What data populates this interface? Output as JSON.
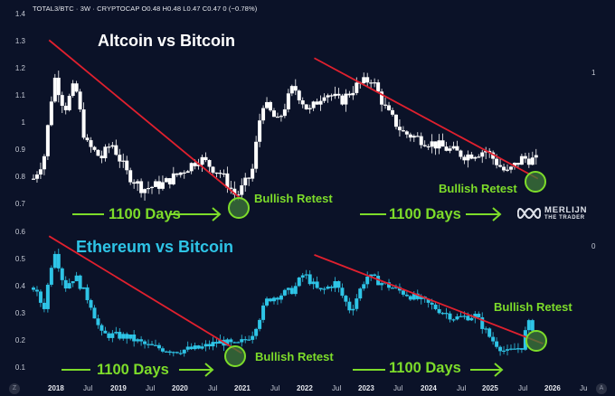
{
  "header": {
    "ohlc_line": "TOTAL3/BTC · 3W · CRYPTOCAP  O0.48  H0.48  L0.47  C0.47  0 (−0.78%)",
    "symbol": "TOTAL3/BTC",
    "interval": "3W",
    "exchange": "CRYPTOCAP",
    "open": "0.48",
    "high": "0.48",
    "low": "0.47",
    "close": "0.47",
    "change": "0 (−0.78%)"
  },
  "colors": {
    "background": "#0b1228",
    "altcoin_candle": "#ffffff",
    "eth_candle": "#2ec4e6",
    "trendline": "#e0202e",
    "annotation": "#7ddc2a",
    "retest_fill": "#3f7a3a"
  },
  "panels": {
    "top": {
      "title": "Altcoin vs Bitcoin",
      "right_axis_label": "1",
      "annotations": {
        "retest_1": "Bullish Retest",
        "retest_2": "Bullish Retest",
        "days_1": "1100 Days",
        "days_2": "1100 Days"
      }
    },
    "bottom": {
      "title": "Ethereum vs Bitcoin",
      "right_axis_label": "0",
      "annotations": {
        "retest_1": "Bullish Retest",
        "retest_2": "Bullish Retest",
        "days_1": "1100 Days",
        "days_2": "1100 Days"
      }
    }
  },
  "logo": {
    "line1": "MERLIJN",
    "line2": "THE TRADER"
  },
  "controls": {
    "zoom_button": "Z",
    "auto_button": "A"
  },
  "chart_data": [
    {
      "type": "candlestick",
      "title": "Altcoin vs Bitcoin",
      "symbol": "TOTAL3/BTC",
      "interval": "3W",
      "ylabel": "",
      "ylim": [
        0.68,
        1.42
      ],
      "yticks": [
        1.4,
        1.3,
        1.2,
        1.1,
        1,
        0.9,
        0.8,
        0.7
      ],
      "x_ticks": [
        "2018",
        "Jul",
        "2019",
        "Jul",
        "2020",
        "Jul",
        "2021",
        "Jul",
        "2022",
        "Jul",
        "2023",
        "Jul",
        "2024",
        "Jul",
        "2025",
        "Jul",
        "2026",
        "Ju"
      ],
      "approx_close_path": [
        {
          "t": "2017-09",
          "v": 0.78
        },
        {
          "t": "2017-11",
          "v": 0.86
        },
        {
          "t": "2018-01",
          "v": 1.18
        },
        {
          "t": "2018-03",
          "v": 1.05
        },
        {
          "t": "2018-05",
          "v": 1.15
        },
        {
          "t": "2018-07",
          "v": 0.92
        },
        {
          "t": "2018-10",
          "v": 0.86
        },
        {
          "t": "2018-12",
          "v": 0.92
        },
        {
          "t": "2019-03",
          "v": 0.8
        },
        {
          "t": "2019-06",
          "v": 0.74
        },
        {
          "t": "2019-10",
          "v": 0.76
        },
        {
          "t": "2020-01",
          "v": 0.8
        },
        {
          "t": "2020-05",
          "v": 0.86
        },
        {
          "t": "2020-09",
          "v": 0.8
        },
        {
          "t": "2020-12",
          "v": 0.71
        },
        {
          "t": "2021-03",
          "v": 0.8
        },
        {
          "t": "2021-05",
          "v": 1.08
        },
        {
          "t": "2021-08",
          "v": 1.0
        },
        {
          "t": "2021-11",
          "v": 1.14
        },
        {
          "t": "2022-02",
          "v": 1.04
        },
        {
          "t": "2022-05",
          "v": 1.12
        },
        {
          "t": "2022-08",
          "v": 1.08
        },
        {
          "t": "2022-11",
          "v": 1.14
        },
        {
          "t": "2023-02",
          "v": 1.17
        },
        {
          "t": "2023-05",
          "v": 1.04
        },
        {
          "t": "2023-08",
          "v": 0.96
        },
        {
          "t": "2023-12",
          "v": 0.93
        },
        {
          "t": "2024-04",
          "v": 0.9
        },
        {
          "t": "2024-08",
          "v": 0.87
        },
        {
          "t": "2024-12",
          "v": 0.89
        },
        {
          "t": "2025-04",
          "v": 0.8
        },
        {
          "t": "2025-07",
          "v": 0.86
        },
        {
          "t": "2025-10",
          "v": 0.85
        }
      ],
      "trendlines": [
        {
          "from": {
            "t": "2017-12",
            "v": 1.32
          },
          "to": {
            "t": "2021-01",
            "v": 0.7
          }
        },
        {
          "from": {
            "t": "2022-03",
            "v": 1.25
          },
          "to": {
            "t": "2025-10",
            "v": 0.78
          }
        }
      ],
      "annotations": [
        {
          "text": "Bullish Retest",
          "at": "2021-01",
          "v": 0.71
        },
        {
          "text": "Bullish Retest",
          "at": "2025-09",
          "v": 0.8
        },
        {
          "text": "1100 Days",
          "span": [
            "2018-01",
            "2021-01"
          ]
        },
        {
          "text": "1100 Days",
          "span": [
            "2022-05",
            "2025-05"
          ]
        }
      ]
    },
    {
      "type": "candlestick",
      "title": "Ethereum vs Bitcoin",
      "ylabel": "",
      "ylim": [
        0.06,
        0.64
      ],
      "yticks": [
        0.6,
        0.5,
        0.4,
        0.3,
        0.2,
        0.1
      ],
      "x_ticks": [
        "2018",
        "Jul",
        "2019",
        "Jul",
        "2020",
        "Jul",
        "2021",
        "Jul",
        "2022",
        "Jul",
        "2023",
        "Jul",
        "2024",
        "Jul",
        "2025",
        "Jul",
        "2026",
        "Ju"
      ],
      "approx_close_path": [
        {
          "t": "2017-09",
          "v": 0.4
        },
        {
          "t": "2017-11",
          "v": 0.31
        },
        {
          "t": "2018-01",
          "v": 0.57
        },
        {
          "t": "2018-03",
          "v": 0.4
        },
        {
          "t": "2018-05",
          "v": 0.45
        },
        {
          "t": "2018-08",
          "v": 0.33
        },
        {
          "t": "2018-10",
          "v": 0.2
        },
        {
          "t": "2019-03",
          "v": 0.19
        },
        {
          "t": "2019-07",
          "v": 0.15
        },
        {
          "t": "2019-12",
          "v": 0.13
        },
        {
          "t": "2020-05",
          "v": 0.14
        },
        {
          "t": "2020-09",
          "v": 0.17
        },
        {
          "t": "2020-12",
          "v": 0.15
        },
        {
          "t": "2021-03",
          "v": 0.2
        },
        {
          "t": "2021-06",
          "v": 0.35
        },
        {
          "t": "2021-11",
          "v": 0.39
        },
        {
          "t": "2022-01",
          "v": 0.46
        },
        {
          "t": "2022-04",
          "v": 0.38
        },
        {
          "t": "2022-07",
          "v": 0.42
        },
        {
          "t": "2022-10",
          "v": 0.3
        },
        {
          "t": "2023-01",
          "v": 0.45
        },
        {
          "t": "2023-06",
          "v": 0.4
        },
        {
          "t": "2023-12",
          "v": 0.34
        },
        {
          "t": "2024-06",
          "v": 0.27
        },
        {
          "t": "2024-10",
          "v": 0.28
        },
        {
          "t": "2025-01",
          "v": 0.18
        },
        {
          "t": "2025-04",
          "v": 0.12
        },
        {
          "t": "2025-07",
          "v": 0.15
        },
        {
          "t": "2025-08",
          "v": 0.25
        },
        {
          "t": "2025-10",
          "v": 0.21
        }
      ],
      "trendlines": [
        {
          "from": {
            "t": "2017-12",
            "v": 0.62
          },
          "to": {
            "t": "2021-01",
            "v": 0.12
          }
        },
        {
          "from": {
            "t": "2022-03",
            "v": 0.54
          },
          "to": {
            "t": "2025-11",
            "v": 0.16
          }
        }
      ],
      "annotations": [
        {
          "text": "Bullish Retest",
          "at": "2021-01",
          "v": 0.13
        },
        {
          "text": "Bullish Retest",
          "at": "2025-09",
          "v": 0.2
        },
        {
          "text": "1100 Days",
          "span": [
            "2018-01",
            "2021-01"
          ]
        },
        {
          "text": "1100 Days",
          "span": [
            "2022-05",
            "2025-05"
          ]
        }
      ]
    }
  ]
}
